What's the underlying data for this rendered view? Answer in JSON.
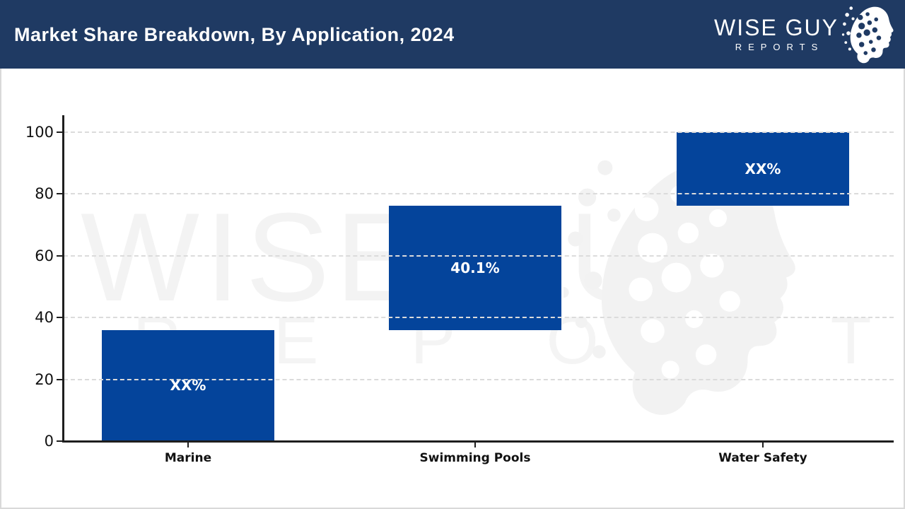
{
  "header": {
    "title": "Market Share Breakdown, By Application, 2024",
    "brand": {
      "line1": "WISE GUY",
      "line2": "REPORTS"
    }
  },
  "watermark": {
    "line1": "WISE GUY",
    "line2": "R E P O R T S"
  },
  "colors": {
    "header_bg": "#1F3A63",
    "bar": "#04449B",
    "grid": "#DBDBDB",
    "axis": "#1E1E1E",
    "title_text": "#FFFFFF",
    "tick_text": "#111111",
    "bar_label_text": "#FFFFFF",
    "watermark": "#F3F3F3"
  },
  "chart_data": {
    "type": "bar",
    "subtype": "waterfall",
    "title": "Market Share Breakdown, By Application, 2024",
    "categories": [
      "Marine",
      "Swimming Pools",
      "Water Safety"
    ],
    "segments": [
      {
        "category": "Marine",
        "start": 0,
        "end": 36,
        "label": "XX%"
      },
      {
        "category": "Swimming Pools",
        "start": 36,
        "end": 76.1,
        "label": "40.1%"
      },
      {
        "category": "Water Safety",
        "start": 76.1,
        "end": 100,
        "label": "XX%"
      }
    ],
    "ylabel": "",
    "xlabel": "",
    "yticks": [
      0,
      20,
      40,
      60,
      80,
      100
    ],
    "ylim": [
      0,
      105
    ],
    "grid": "horizontal-dashed",
    "legend": "none"
  }
}
